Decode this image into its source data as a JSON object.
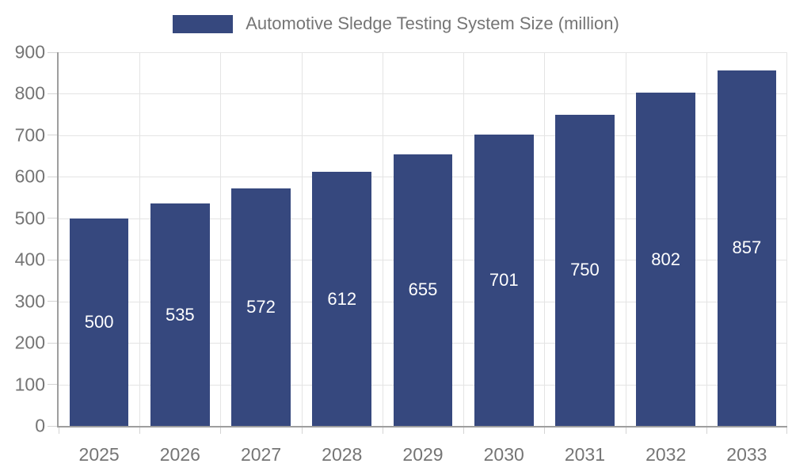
{
  "legend": {
    "label": "Automotive Sledge Testing System Size (million)"
  },
  "colors": {
    "bar": "#36487e",
    "grid": "#e4e4e4",
    "axis": "#9e9e9e",
    "tick": "#d4d4d4",
    "tick_label": "#757575",
    "bar_label": "#ffffff"
  },
  "chart_data": {
    "type": "bar",
    "title": "Automotive Sledge Testing System Size (million)",
    "categories": [
      "2025",
      "2026",
      "2027",
      "2028",
      "2029",
      "2030",
      "2031",
      "2032",
      "2033"
    ],
    "values": [
      500,
      535,
      572,
      612,
      655,
      701,
      750,
      802,
      857
    ],
    "xlabel": "",
    "ylabel": "",
    "ylim": [
      0,
      900
    ],
    "ytick_step": 100,
    "grid": true,
    "legend_position": "top",
    "bar_width_fraction": 0.73
  }
}
